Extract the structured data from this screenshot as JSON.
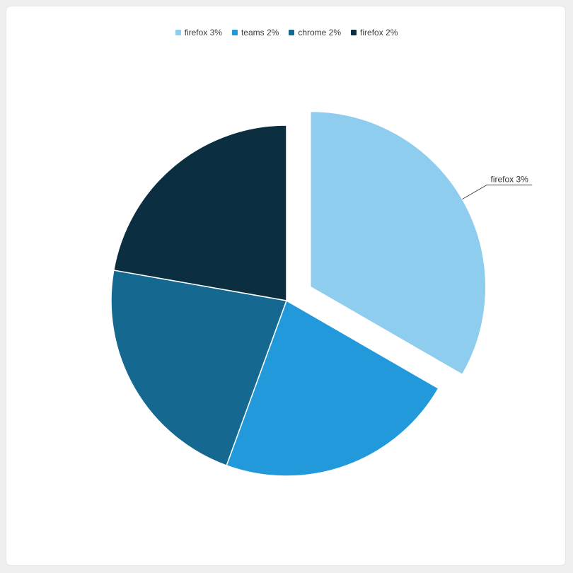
{
  "page": {
    "background_color": "#efefef",
    "card_background_color": "#ffffff"
  },
  "chart_data": {
    "type": "pie",
    "title": "",
    "legend_position": "top",
    "direction": "clockwise",
    "start_angle_deg": 0,
    "total": 9,
    "slices": [
      {
        "label": "firefox 3%",
        "name": "firefox",
        "value": 3,
        "color": "#8fcdee",
        "exploded": true,
        "callout": true
      },
      {
        "label": "teams 2%",
        "name": "teams",
        "value": 2,
        "color": "#2199db",
        "exploded": false,
        "callout": false
      },
      {
        "label": "chrome 2%",
        "name": "chrome",
        "value": 2,
        "color": "#156890",
        "exploded": false,
        "callout": false
      },
      {
        "label": "firefox 2%",
        "name": "firefox",
        "value": 2,
        "color": "#0b2e41",
        "exploded": false,
        "callout": false
      }
    ],
    "callout_label": "firefox 3%",
    "callout_text_color": "#333333",
    "callout_line_color": "#444444",
    "slice_border_color": "#ffffff"
  }
}
